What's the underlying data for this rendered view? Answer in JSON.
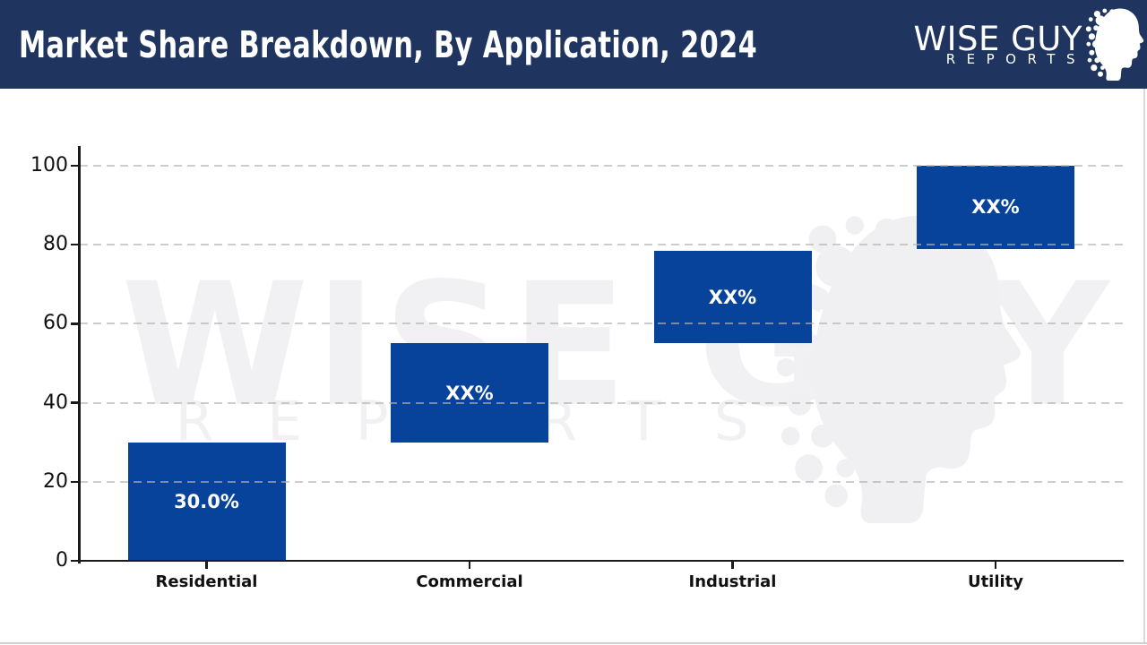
{
  "header": {
    "title": "Market Share Breakdown, By Application, 2024",
    "background_color": "#1f355f",
    "logo": {
      "line1": "WISE GUY",
      "line2": "REPORTS"
    }
  },
  "watermark": {
    "line1": "WISE GUY",
    "line2": "REPORTS"
  },
  "chart_data": {
    "type": "bar",
    "subtype": "floating-segment-breakdown",
    "title": "Market Share Breakdown, By Application, 2024",
    "categories": [
      "Residential",
      "Commercial",
      "Industrial",
      "Utility"
    ],
    "series": [
      {
        "name": "Residential",
        "from": 0,
        "to": 30,
        "label": "30.0%"
      },
      {
        "name": "Commercial",
        "from": 30,
        "to": 55,
        "label": "XX%"
      },
      {
        "name": "Industrial",
        "from": 55,
        "to": 78.5,
        "label": "XX%"
      },
      {
        "name": "Utility",
        "from": 79,
        "to": 100,
        "label": "XX%"
      }
    ],
    "xlabel": "",
    "ylabel": "",
    "ylim": [
      0,
      105
    ],
    "yticks": [
      0,
      20,
      40,
      60,
      80,
      100
    ],
    "grid": "dashed-horizontal",
    "legend": "none",
    "bar_color": "#08439b",
    "bar_label_color": "#ffffff",
    "axis_color": "#1a1a1a",
    "gridline_color": "#d8d8d8"
  }
}
